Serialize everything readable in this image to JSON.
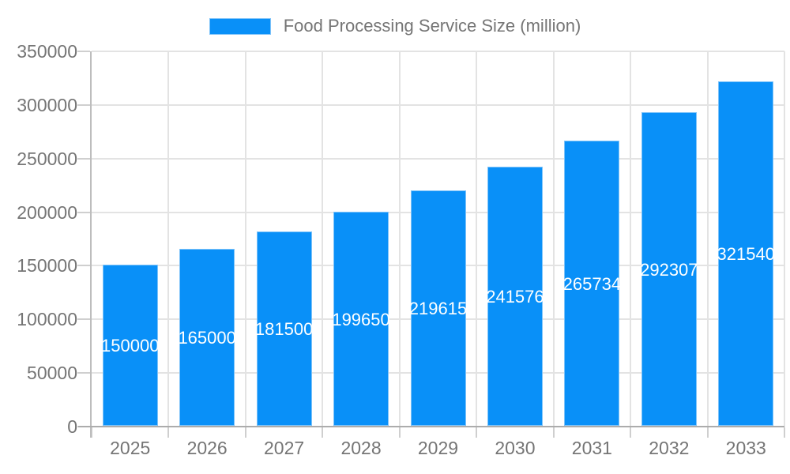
{
  "legend": {
    "label": "Food Processing Service Size (million)",
    "swatch_color": "#0990F8"
  },
  "chart_data": {
    "type": "bar",
    "title": "Food Processing Service Size (million)",
    "categories": [
      "2025",
      "2026",
      "2027",
      "2028",
      "2029",
      "2030",
      "2031",
      "2032",
      "2033"
    ],
    "values": [
      150000,
      165000,
      181500,
      199650,
      219615,
      241576,
      265734,
      292307,
      321540
    ],
    "value_labels": [
      "150000",
      "165000",
      "181500",
      "199650",
      "219615",
      "241576",
      "265734",
      "292307",
      "321540"
    ],
    "xlabel": "",
    "ylabel": "",
    "ylim": [
      0,
      350000
    ],
    "yticks": [
      0,
      50000,
      100000,
      150000,
      200000,
      250000,
      300000,
      350000
    ],
    "ytick_labels": [
      "0",
      "50000",
      "100000",
      "150000",
      "200000",
      "250000",
      "300000",
      "350000"
    ],
    "grid": true,
    "legend_position": "top",
    "series_name": "Food Processing Service Size (million)"
  },
  "colors": {
    "bar": "#0990F8",
    "bar_border": "#7EC3F9",
    "bar_value_text": "#FFFFFF",
    "axis_text": "#757575",
    "grid_line": "#E3E3E3",
    "x_axis_line": "#ACACAC",
    "y_axis_line": "#BDBDBD",
    "tick_mark": "#CFCFCF",
    "background": "#FFFFFF"
  }
}
